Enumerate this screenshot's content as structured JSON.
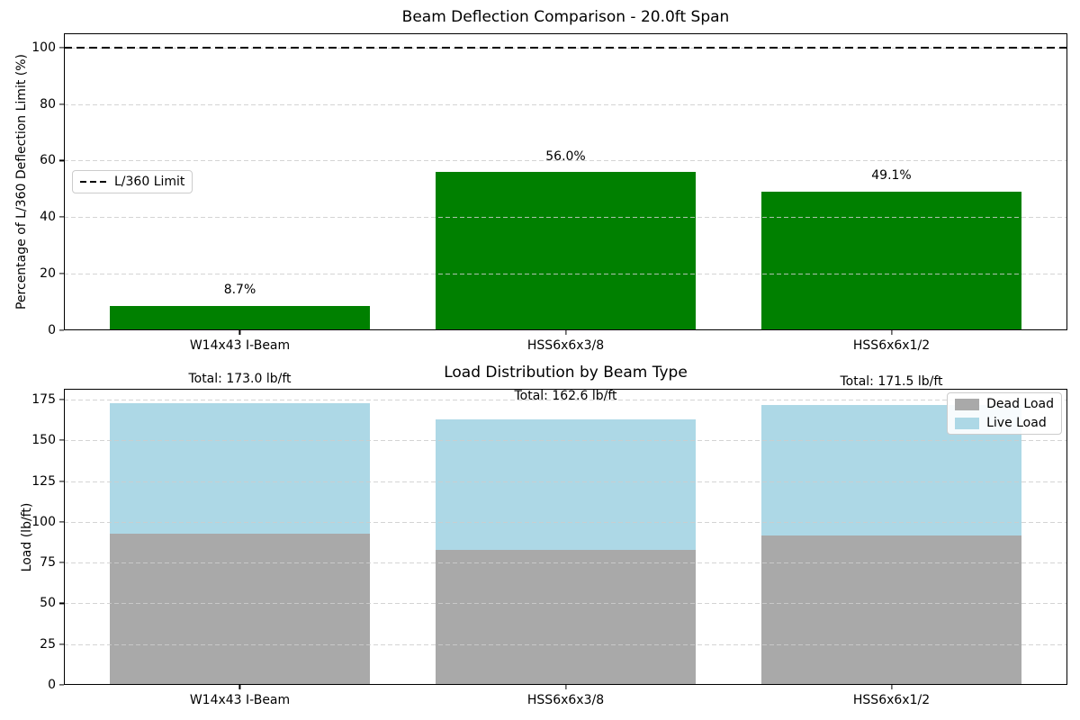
{
  "figure": {
    "background": "#ffffff",
    "text_color": "#000000",
    "grid_color": "#cdcdcd"
  },
  "chart_data": [
    {
      "type": "bar",
      "title": "Beam Deflection Comparison - 20.0ft Span",
      "xlabel": "",
      "ylabel": "Percentage of L/360 Deflection Limit (%)",
      "categories": [
        "W14x43 I-Beam",
        "HSS6x6x3/8",
        "HSS6x6x1/2"
      ],
      "values": [
        8.7,
        56.0,
        49.1
      ],
      "value_labels": [
        "8.7%",
        "56.0%",
        "49.1%"
      ],
      "value_label_offset": 3,
      "bar_color": "#008000",
      "bar_width": 0.8,
      "xlim": [
        -0.54,
        2.54
      ],
      "ylim": [
        0,
        105
      ],
      "yticks": [
        0,
        20,
        40,
        60,
        80,
        100
      ],
      "grid": "y-dashed",
      "ref_line": {
        "value": 100,
        "label": "L/360 Limit",
        "color": "#000000",
        "style": "dashed"
      },
      "legend": {
        "position": "center-left",
        "entries": [
          {
            "label": "L/360 Limit",
            "swatch": "dashed-line",
            "color": "#000000"
          }
        ]
      }
    },
    {
      "type": "stacked-bar",
      "title": "Load Distribution by Beam Type",
      "xlabel": "",
      "ylabel": "Load (lb/ft)",
      "categories": [
        "W14x43 I-Beam",
        "HSS6x6x3/8",
        "HSS6x6x1/2"
      ],
      "series": [
        {
          "name": "Dead Load",
          "values": [
            93.0,
            82.6,
            91.5
          ],
          "color": "#a9a9a9"
        },
        {
          "name": "Live Load",
          "values": [
            80.0,
            80.0,
            80.0
          ],
          "color": "#add8e6"
        }
      ],
      "totals": [
        173.0,
        162.6,
        171.5
      ],
      "total_labels": [
        "Total: 173.0 lb/ft",
        "Total: 162.6 lb/ft",
        "Total: 171.5 lb/ft"
      ],
      "total_label_offset": 10,
      "bar_width": 0.8,
      "xlim": [
        -0.54,
        2.54
      ],
      "ylim": [
        0,
        181.6
      ],
      "yticks": [
        0,
        25,
        50,
        75,
        100,
        125,
        150,
        175
      ],
      "grid": "y-dashed",
      "legend": {
        "position": "upper-right",
        "entries": [
          {
            "label": "Dead Load",
            "swatch": "patch",
            "color": "#a9a9a9"
          },
          {
            "label": "Live Load",
            "swatch": "patch",
            "color": "#add8e6"
          }
        ]
      }
    }
  ]
}
